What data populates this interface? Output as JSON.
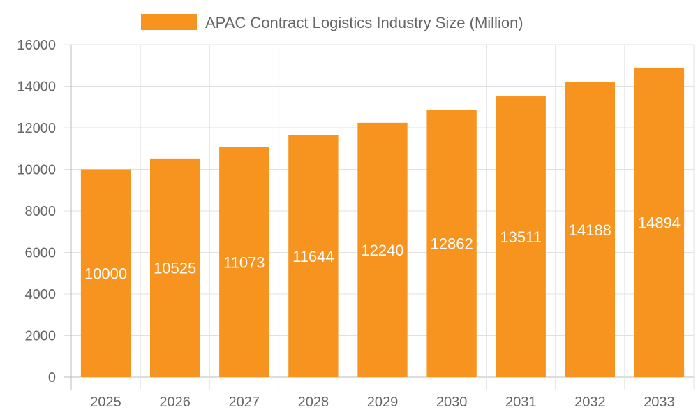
{
  "chart_data": {
    "type": "bar",
    "title": "",
    "legend": [
      {
        "label": "APAC Contract Logistics Industry Size (Million)",
        "color": "#F7941F"
      }
    ],
    "legend_placement": "top",
    "categories": [
      "2025",
      "2026",
      "2027",
      "2028",
      "2029",
      "2030",
      "2031",
      "2032",
      "2033"
    ],
    "series": [
      {
        "name": "APAC Contract Logistics Industry Size (Million)",
        "values": [
          10000,
          10525,
          11073,
          11644,
          12240,
          12862,
          13511,
          14188,
          14894
        ]
      }
    ],
    "data_labels": [
      "10000",
      "10525",
      "11073",
      "11644",
      "12240",
      "12862",
      "13511",
      "14188",
      "14894"
    ],
    "ylim": [
      0,
      16000
    ],
    "yticks": [
      "0",
      "2000",
      "4000",
      "6000",
      "8000",
      "10000",
      "12000",
      "14000",
      "16000"
    ],
    "grid": true,
    "xlabel": "",
    "ylabel": "",
    "colors": {
      "bar": "#F7941F",
      "label": "#ffffff",
      "tick_text": "#666666",
      "grid": "#e0e0e0"
    }
  }
}
